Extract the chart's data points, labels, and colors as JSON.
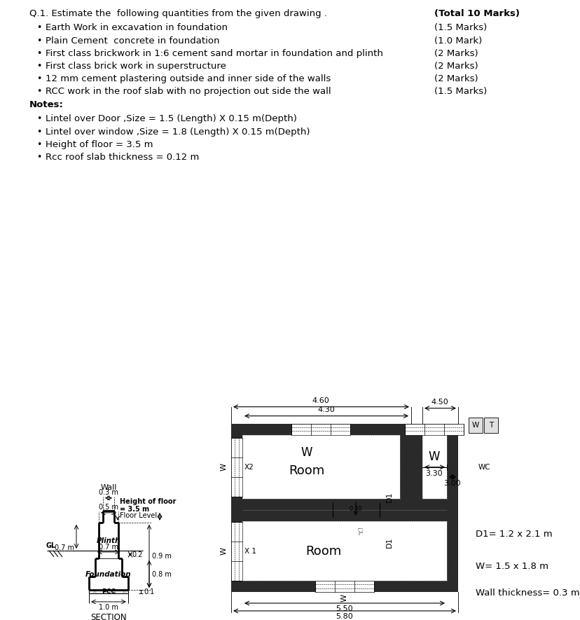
{
  "bg_color": "#ffffff",
  "title_text": "Q.1. Estimate the  following quantities from the given drawing .",
  "title_marks": "(Total 10 Marks)",
  "bullets": [
    [
      "Earth Work in excavation in foundation",
      "(1.5 Marks)"
    ],
    [
      "Plain Cement  concrete in foundation",
      "(1.0 Mark)"
    ],
    [
      "First class brickwork in 1:6 cement sand mortar in foundation and plinth",
      "(2 Marks)"
    ],
    [
      "First class brick work in superstructure",
      "(2 Marks)"
    ],
    [
      "12 mm cement plastering outside and inner side of the walls",
      "(2 Marks)"
    ],
    [
      "RCC work in the roof slab with no projection out side the wall",
      "(1.5 Marks)"
    ]
  ],
  "notes_header": "Notes:",
  "notes": [
    "Lintel over Door ,Size = 1.5 (Length) X 0.15 m(Depth)",
    "Lintel over window ,Size = 1.8 (Length) X 0.15 m(Depth)",
    "Height of floor = 3.5 m",
    "Rcc roof slab thickness = 0.12 m"
  ],
  "legend_lines": [
    "D1= 1.2 x 2.1 m",
    "W= 1.5 x 1.8 m",
    "Wall thickness= 0.3 m"
  ]
}
